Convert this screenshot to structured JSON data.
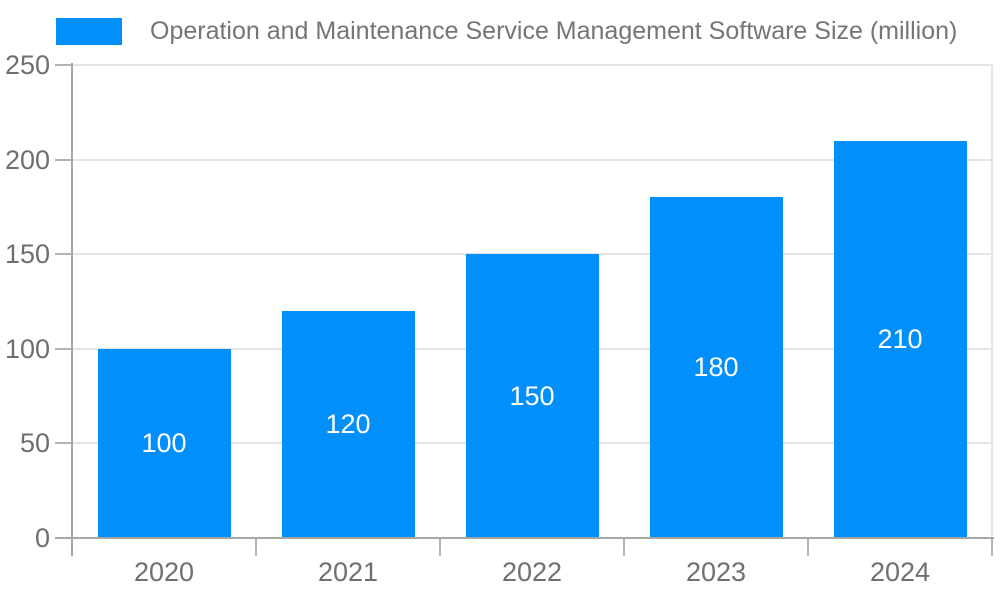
{
  "chart_data": {
    "type": "bar",
    "title": "Operation and Maintenance Service Management Software Size (million)",
    "categories": [
      "2020",
      "2021",
      "2022",
      "2023",
      "2024"
    ],
    "values": [
      100,
      120,
      150,
      180,
      210
    ],
    "xlabel": "",
    "ylabel": "",
    "ylim": [
      0,
      250
    ],
    "yticks": [
      0,
      50,
      100,
      150,
      200,
      250
    ],
    "grid": true,
    "legend_position": "top-left",
    "data_labels_inside_bars": true
  },
  "colors": {
    "bar": "#008ffb",
    "title_text": "#757575",
    "axis_text": "#6f6f6f",
    "gridline": "#e4e4e4",
    "axis_line": "#a6a6a6",
    "tick_mark": "#b3b3b3",
    "data_label": "#ffffff",
    "background": "#ffffff"
  }
}
